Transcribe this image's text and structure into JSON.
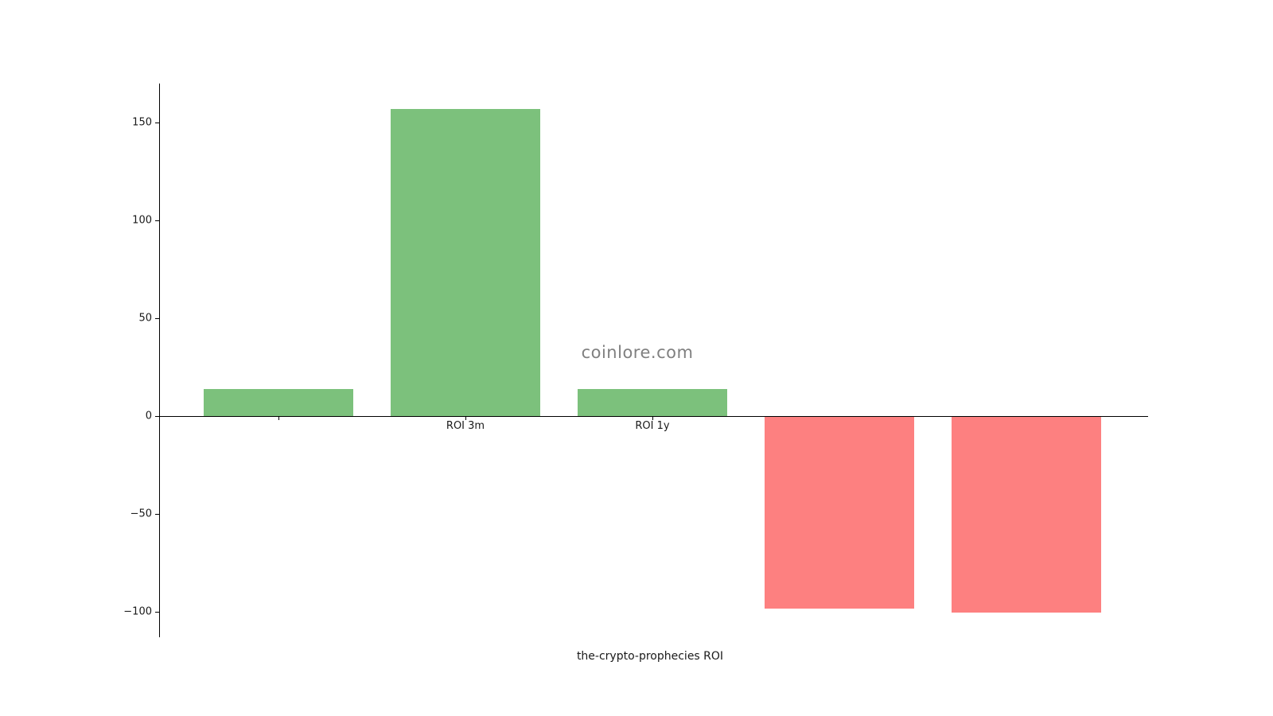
{
  "watermark": "coinlore.com",
  "chart_data": {
    "type": "bar",
    "title": "the-crypto-prophecies ROI",
    "categories": [
      "",
      "ROI 3m",
      "ROI 1y",
      "",
      ""
    ],
    "values": [
      14,
      157,
      14,
      -98,
      -100
    ],
    "xticks": [
      {
        "index": 0,
        "label": ""
      },
      {
        "index": 1,
        "label": "ROI 3m"
      },
      {
        "index": 2,
        "label": "ROI 1y"
      }
    ],
    "yticks": [
      150,
      100,
      50,
      0,
      -50,
      -100
    ],
    "ylim": [
      -113,
      170
    ],
    "grid": false,
    "legend": null,
    "xlabel": "",
    "ylabel": "",
    "positive_color": "#7cc17c",
    "negative_color": "#fd8080",
    "axis_color": "#000000",
    "tick_text_color": "#1a1a1a",
    "watermark_color": "#808080"
  }
}
